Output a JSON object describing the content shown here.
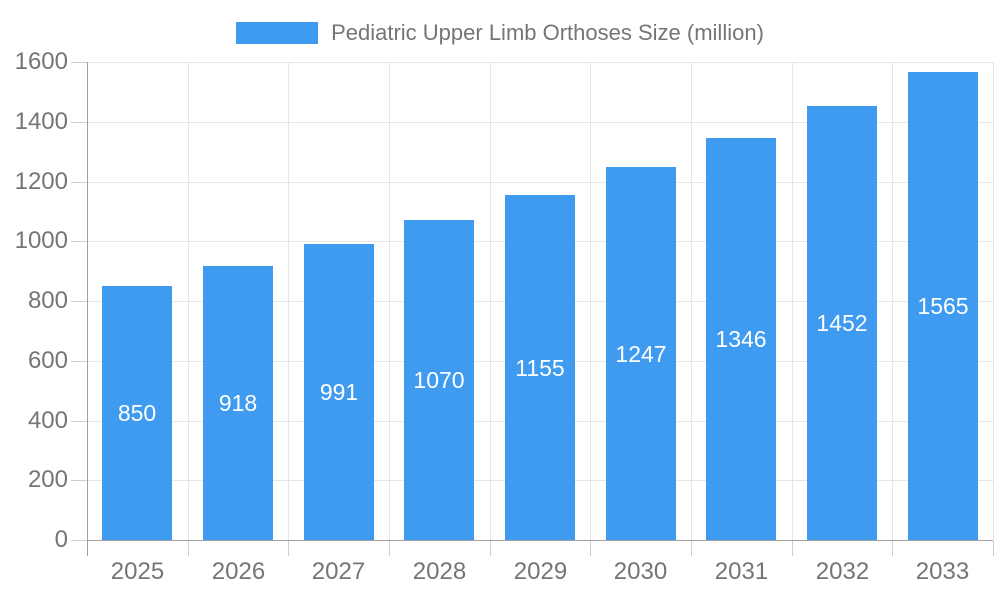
{
  "chart_data": {
    "type": "bar",
    "title": "Pediatric Upper Limb Orthoses Size (million)",
    "categories": [
      "2025",
      "2026",
      "2027",
      "2028",
      "2029",
      "2030",
      "2031",
      "2032",
      "2033"
    ],
    "values": [
      850,
      918,
      991,
      1070,
      1155,
      1247,
      1346,
      1452,
      1565
    ],
    "xlabel": "",
    "ylabel": "",
    "ylim": [
      0,
      1600
    ],
    "yticks": [
      0,
      200,
      400,
      600,
      800,
      1000,
      1200,
      1400,
      1600
    ],
    "grid": true,
    "legend_position": "top-center",
    "value_labels": "inside-middle",
    "colors": {
      "bar": "#3E9BEF",
      "value_label": "#ffffff",
      "text": "#757575",
      "axis": "#a0a0a0",
      "grid": "#e6e6e6",
      "tick": "#cfcfcf"
    }
  }
}
